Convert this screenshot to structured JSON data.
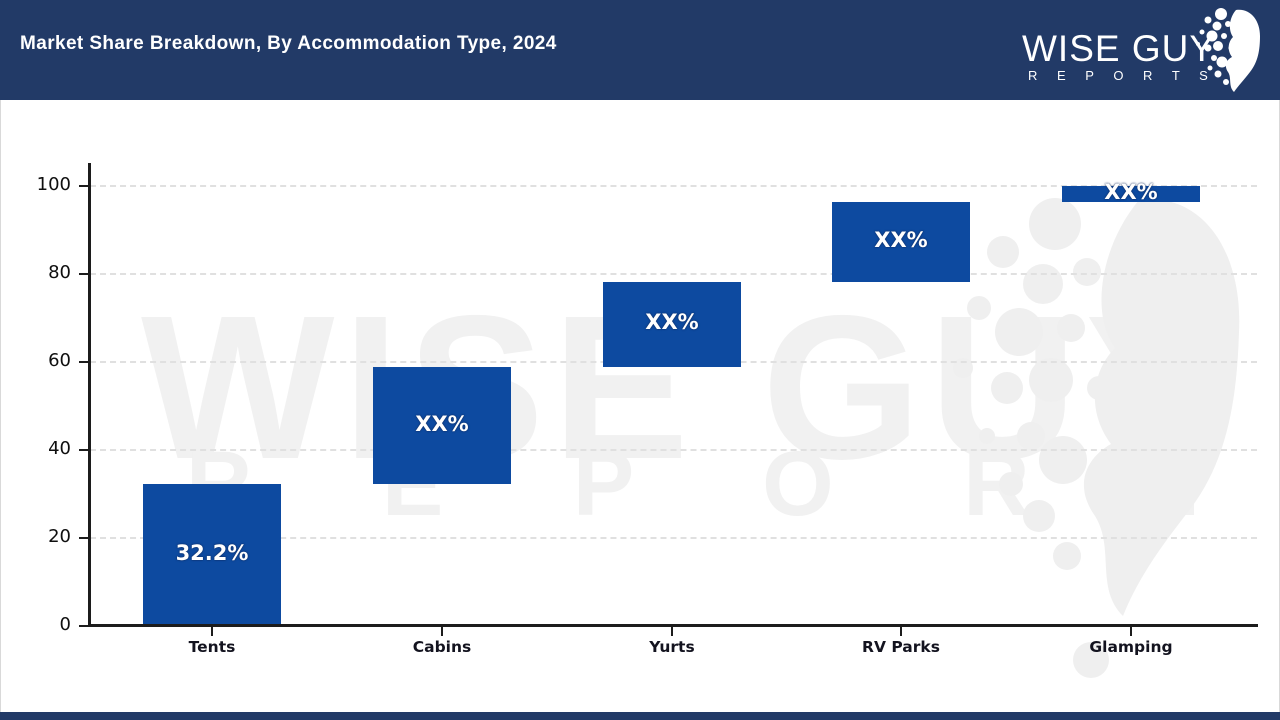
{
  "header": {
    "title": "Market Share Breakdown, By Accommodation Type, 2024",
    "logo": {
      "line1": "WISE GUY",
      "line2": "R E P O R T S"
    }
  },
  "watermark": {
    "line1": "WISE GUY",
    "line2": "R E P O R T S"
  },
  "colors": {
    "header_bg": "#223a67",
    "footer_bg": "#223a67",
    "bar": "#0d4aa0",
    "bar_label": "#ffffff",
    "axis": "#1c1c1c",
    "gridline": "#e0e0e0",
    "watermark": "#f1f1f1"
  },
  "chart_data": {
    "type": "bar",
    "subtype": "waterfall",
    "title": "Market Share Breakdown, By Accommodation Type, 2024",
    "categories": [
      "Tents",
      "Cabins",
      "Yurts",
      "RV Parks",
      "Glamping"
    ],
    "segments": [
      {
        "category": "Tents",
        "start": 0,
        "end": 32.2,
        "label": "32.2%"
      },
      {
        "category": "Cabins",
        "start": 32.2,
        "end": 58.9,
        "label": "XX%"
      },
      {
        "category": "Yurts",
        "start": 58.9,
        "end": 78.2,
        "label": "XX%"
      },
      {
        "category": "RV Parks",
        "start": 78.2,
        "end": 96.4,
        "label": "XX%"
      },
      {
        "category": "Glamping",
        "start": 96.4,
        "end": 100,
        "label": "XX%"
      }
    ],
    "y_ticks": [
      0,
      20,
      40,
      60,
      80,
      100
    ],
    "ylim": [
      0,
      105
    ],
    "xlabel": "",
    "ylabel": "",
    "grid": "horizontal-dashed",
    "legend": "none",
    "bar_color": "#0d4aa0"
  }
}
